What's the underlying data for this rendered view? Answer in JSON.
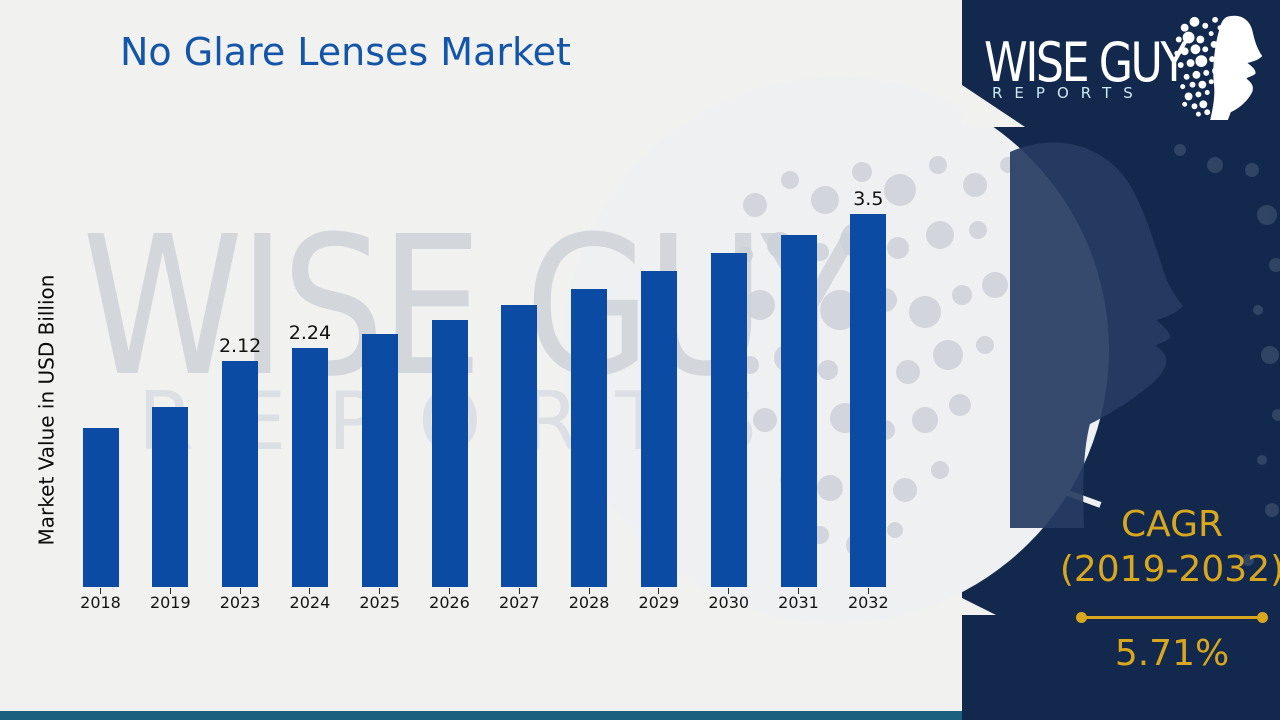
{
  "title": "No Glare Lenses Market",
  "y_axis_label": "Market Value in USD Billion",
  "watermark": {
    "line1": "WISE GUY",
    "line2": "REPORTS"
  },
  "logo": {
    "line1": "WISE GUY",
    "line2": "REPORTS"
  },
  "cagr": {
    "heading": "CAGR",
    "range": "(2019-2032)",
    "value": "5.71%"
  },
  "colors": {
    "background": "#f1f1ef",
    "bar_blue": "#0c4ba3",
    "title_blue": "#1355a9",
    "panel_navy": "#12294d",
    "accent_gold": "#d8a71e",
    "teal_bar": "#1c6080",
    "watermark_gray": "#d3d6db"
  },
  "chart_data": {
    "type": "bar",
    "categories": [
      "2018",
      "2019",
      "2023",
      "2024",
      "2025",
      "2026",
      "2027",
      "2028",
      "2029",
      "2030",
      "2031",
      "2032"
    ],
    "values": [
      1.49,
      1.69,
      2.12,
      2.24,
      2.37,
      2.5,
      2.65,
      2.8,
      2.96,
      3.13,
      3.3,
      3.5
    ],
    "data_labels": {
      "2023": "2.12",
      "2024": "2.24",
      "2032": "3.5"
    },
    "title": "No Glare Lenses Market",
    "xlabel": "",
    "ylabel": "Market Value in USD Billion",
    "ylim": [
      0,
      3.8
    ],
    "grid": false,
    "legend": "none",
    "bar_color": "#0c4ba3"
  }
}
